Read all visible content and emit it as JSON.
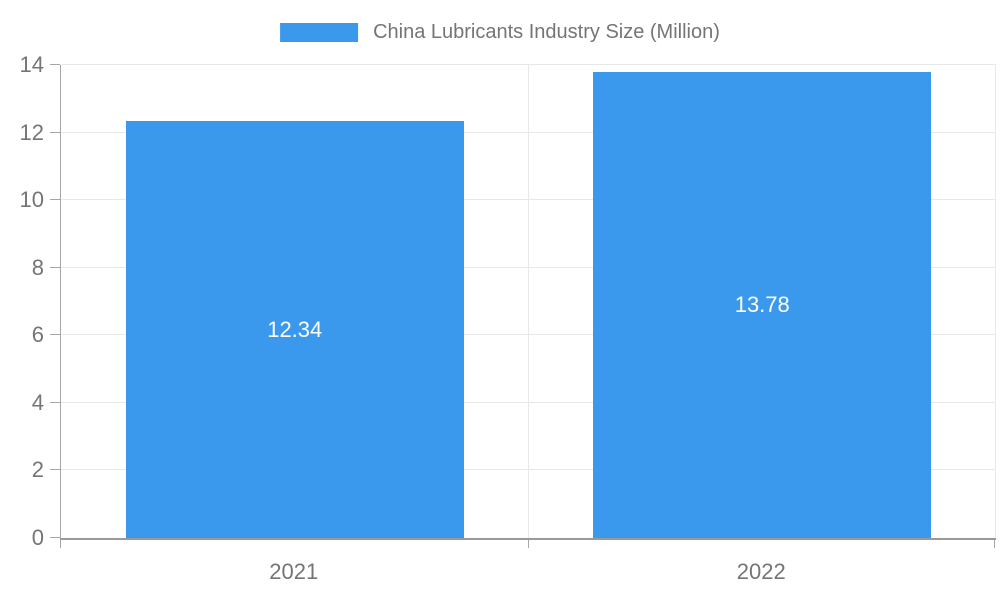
{
  "chart_data": {
    "type": "bar",
    "series_name": "China Lubricants Industry Size (Million)",
    "categories": [
      "2021",
      "2022"
    ],
    "values": [
      12.34,
      13.78
    ],
    "value_labels": [
      "12.34",
      "13.78"
    ],
    "ylim": [
      0,
      14
    ],
    "yticks": [
      0,
      2,
      4,
      6,
      8,
      10,
      12,
      14
    ],
    "grid": true,
    "legend_position": "top",
    "xlabel": "",
    "ylabel": ""
  },
  "colors": {
    "bar": "#3B99ED",
    "grid_line": "#E8E8E8",
    "axis_line": "#A6A6A6",
    "bottom_axis_line": "#999999",
    "label_text": "#757575",
    "value_text": "#FFFFFF",
    "background": "#FFFFFF"
  },
  "layout": {
    "bar_width_pct_of_band": 72.3
  }
}
